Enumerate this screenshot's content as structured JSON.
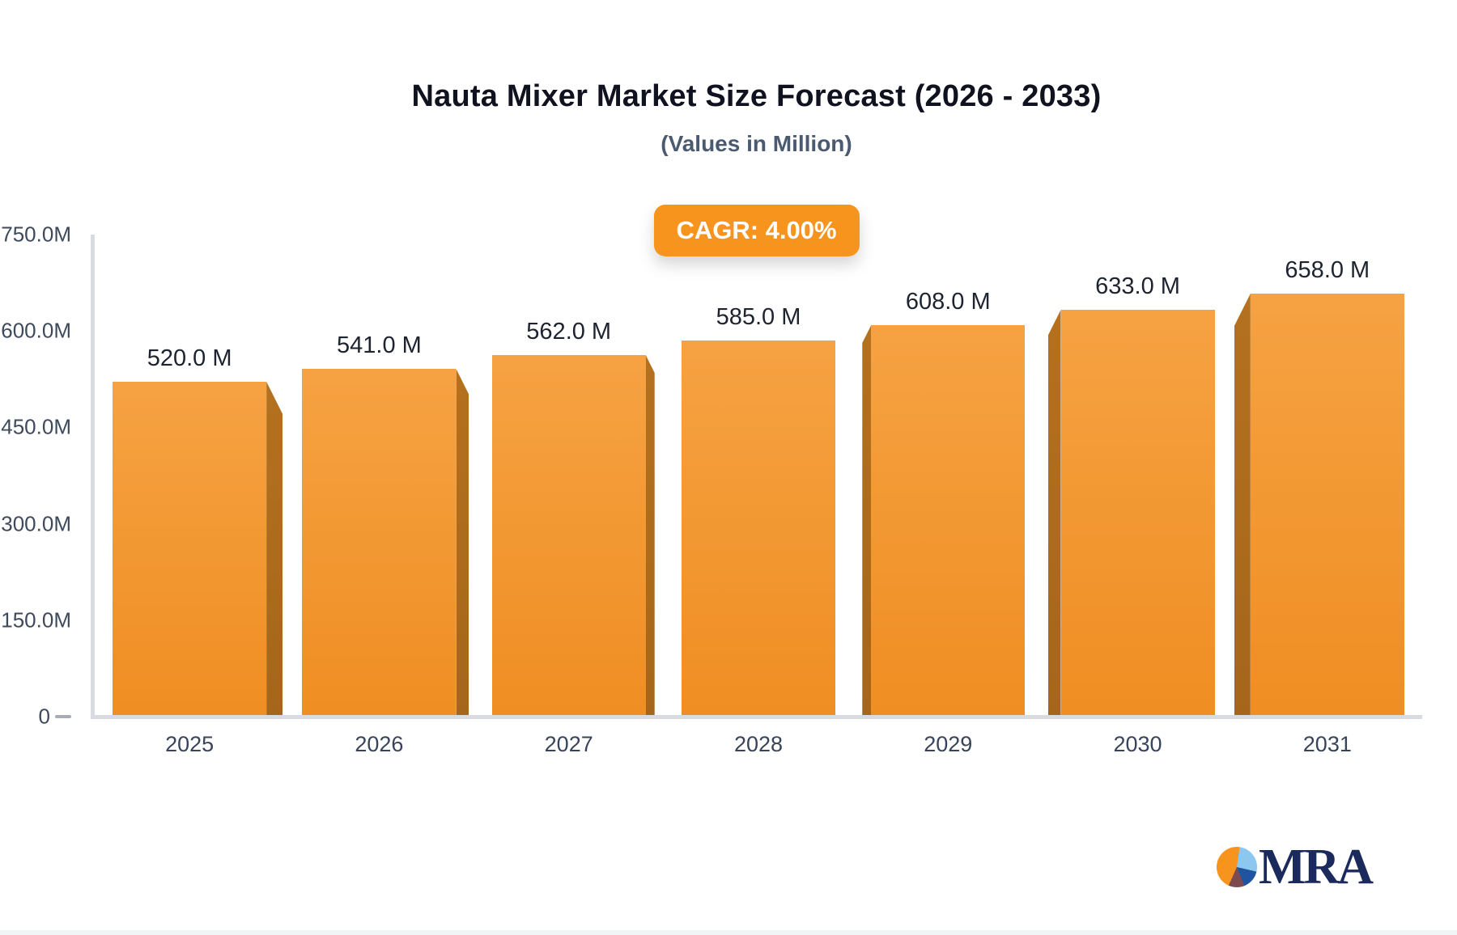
{
  "header": {
    "title": "Nauta Mixer Market Size Forecast (2026 - 2033)",
    "subtitle": "(Values in Million)"
  },
  "badge": {
    "label": "CAGR: 4.00%"
  },
  "chart_data": {
    "type": "bar",
    "title": "Nauta Mixer Market Size Forecast (2026 - 2033)",
    "subtitle": "(Values in Million)",
    "categories": [
      "2025",
      "2026",
      "2027",
      "2028",
      "2029",
      "2030",
      "2031"
    ],
    "values": [
      520,
      541,
      562,
      585,
      608,
      633,
      658
    ],
    "bar_labels": [
      "520.0 M",
      "541.0 M",
      "562.0 M",
      "585.0 M",
      "608.0 M",
      "633.0 M",
      "658.0 M"
    ],
    "cagr_label": "CAGR: 4.00%",
    "xlabel": "",
    "ylabel": "",
    "ylim": [
      0,
      750
    ],
    "ytick_labels": [
      "750.0M",
      "600.0M",
      "450.0M",
      "300.0M",
      "150.0M",
      "0"
    ],
    "ytick_values": [
      750,
      600,
      450,
      300,
      150,
      0
    ],
    "grid": false,
    "legend": false,
    "style": "3d-perspective-bars",
    "colors": {
      "bar_top": "#F6A243",
      "bar_bottom": "#EF8E22",
      "bar_side_top": "#B4711F",
      "bar_side_bottom": "#A5661B",
      "badge_bg": "#F7941E",
      "axis_line": "#D8DBE0",
      "tick_label": "#3E4A5C",
      "value_label": "#1D2430",
      "title": "#10131F",
      "subtitle": "#4A5A70"
    }
  },
  "logo": {
    "text": "MRA",
    "text_color": "#1B2A5C",
    "pie_colors": {
      "orange": "#F7941E",
      "light_blue": "#8CC7EF",
      "dark_blue": "#1F55A0",
      "maroon": "#7D4A50"
    }
  }
}
